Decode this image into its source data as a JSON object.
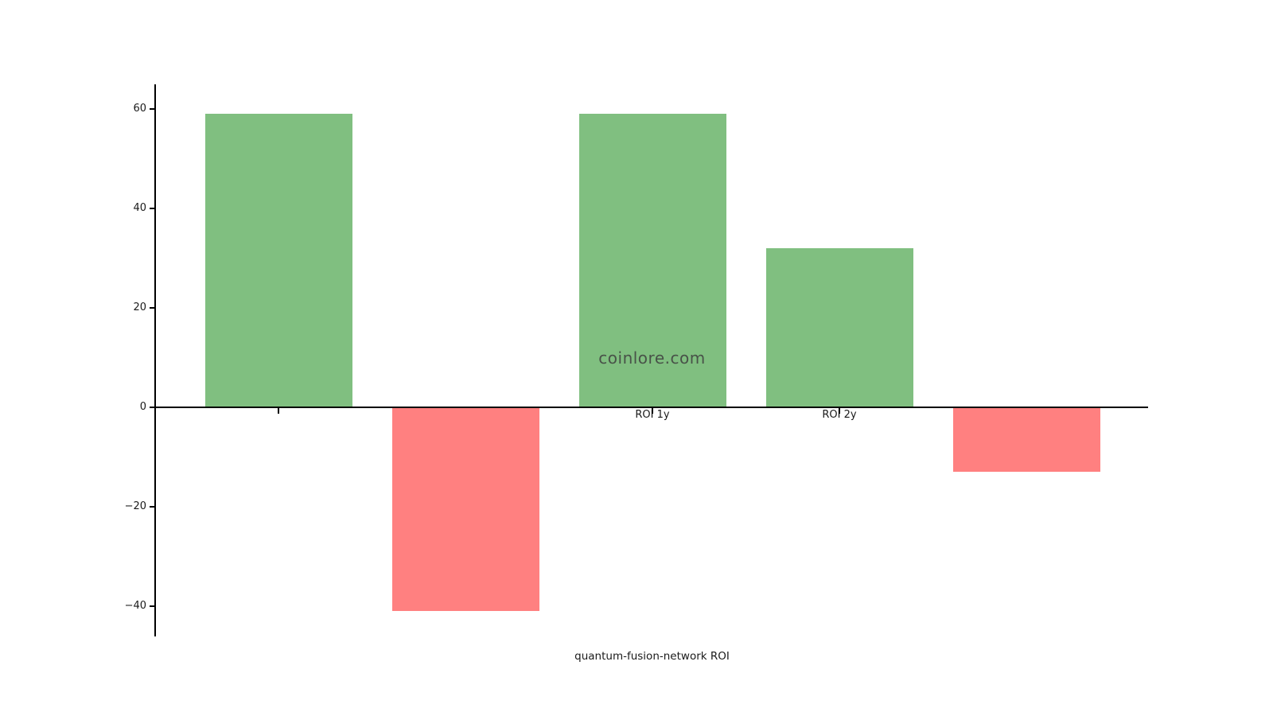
{
  "chart_data": {
    "type": "bar",
    "title": "quantum-fusion-network ROI",
    "watermark": "coinlore.com",
    "categories": [
      "",
      "",
      "ROI 1y",
      "ROI 2y",
      ""
    ],
    "values": [
      59,
      -41,
      59,
      32,
      -13
    ],
    "bar_colors": [
      "#80bf80",
      "#ff8080",
      "#80bf80",
      "#80bf80",
      "#ff8080"
    ],
    "x_ticks_visible_at": [
      0,
      2,
      3
    ],
    "yticks": [
      60,
      40,
      20,
      0,
      -20,
      -40
    ],
    "ytick_labels": [
      "60",
      "40",
      "20",
      "0",
      "−20",
      "−40"
    ],
    "ylim": [
      -46,
      65
    ],
    "xlabel": "",
    "ylabel": "",
    "grid": false,
    "legend": false,
    "colors": {
      "positive": "#80bf80",
      "negative": "#ff8080",
      "axis": "#000000",
      "tick_label": "#1a1a1a",
      "watermark": "#3e3e3e",
      "title": "#1a1a1a"
    }
  }
}
